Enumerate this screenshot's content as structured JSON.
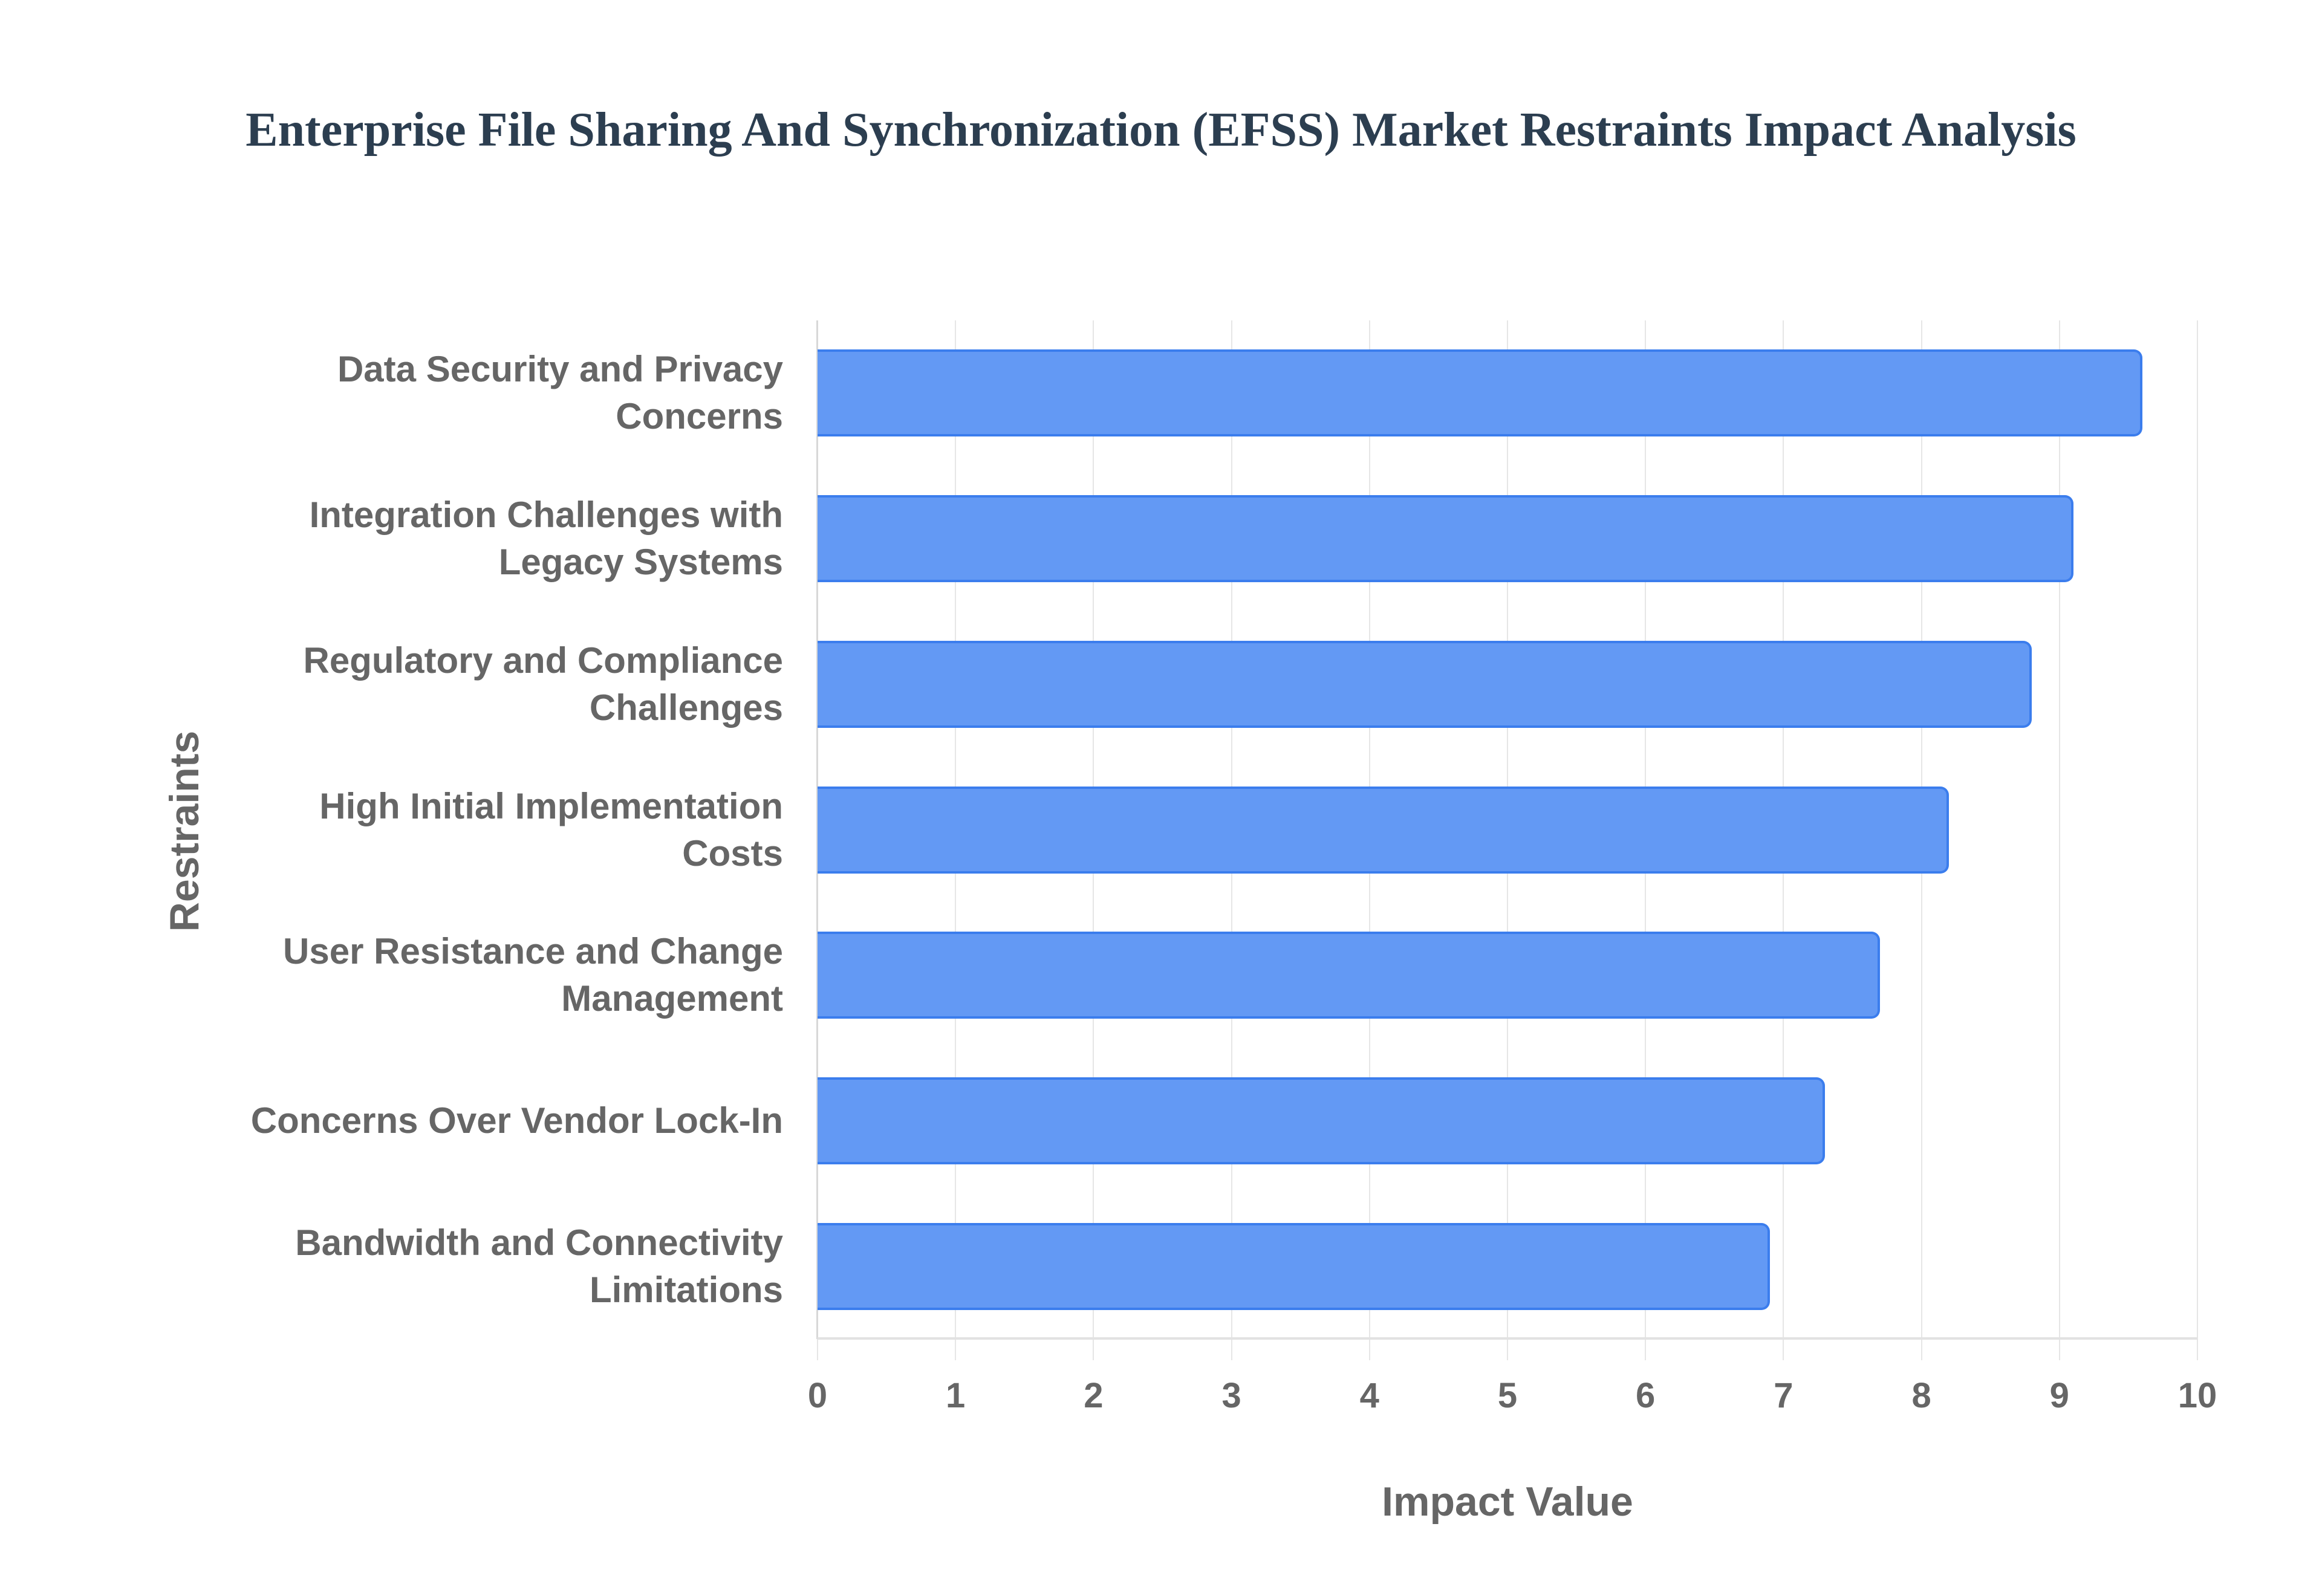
{
  "chart_data": {
    "type": "bar",
    "orientation": "horizontal",
    "title": "Enterprise File Sharing And Synchronization (EFSS) Market Restraints Impact Analysis",
    "xlabel": "Impact Value",
    "ylabel": "Restraints",
    "xlim": [
      0,
      10
    ],
    "x_ticks": [
      "0",
      "1",
      "2",
      "3",
      "4",
      "5",
      "6",
      "7",
      "8",
      "9",
      "10"
    ],
    "grid": true,
    "legend": null,
    "bar_color": "#6399f4",
    "bar_border_color": "#3b7ded",
    "categories": [
      [
        "Data Security and Privacy",
        "Concerns"
      ],
      [
        "Integration Challenges with",
        "Legacy Systems"
      ],
      [
        "Regulatory and Compliance",
        "Challenges"
      ],
      [
        "High Initial Implementation",
        "Costs"
      ],
      [
        "User Resistance and Change",
        "Management"
      ],
      [
        "Concerns Over Vendor Lock-In"
      ],
      [
        "Bandwidth and Connectivity",
        "Limitations"
      ]
    ],
    "values": [
      9.6,
      9.1,
      8.8,
      8.2,
      7.7,
      7.3,
      6.9
    ]
  }
}
